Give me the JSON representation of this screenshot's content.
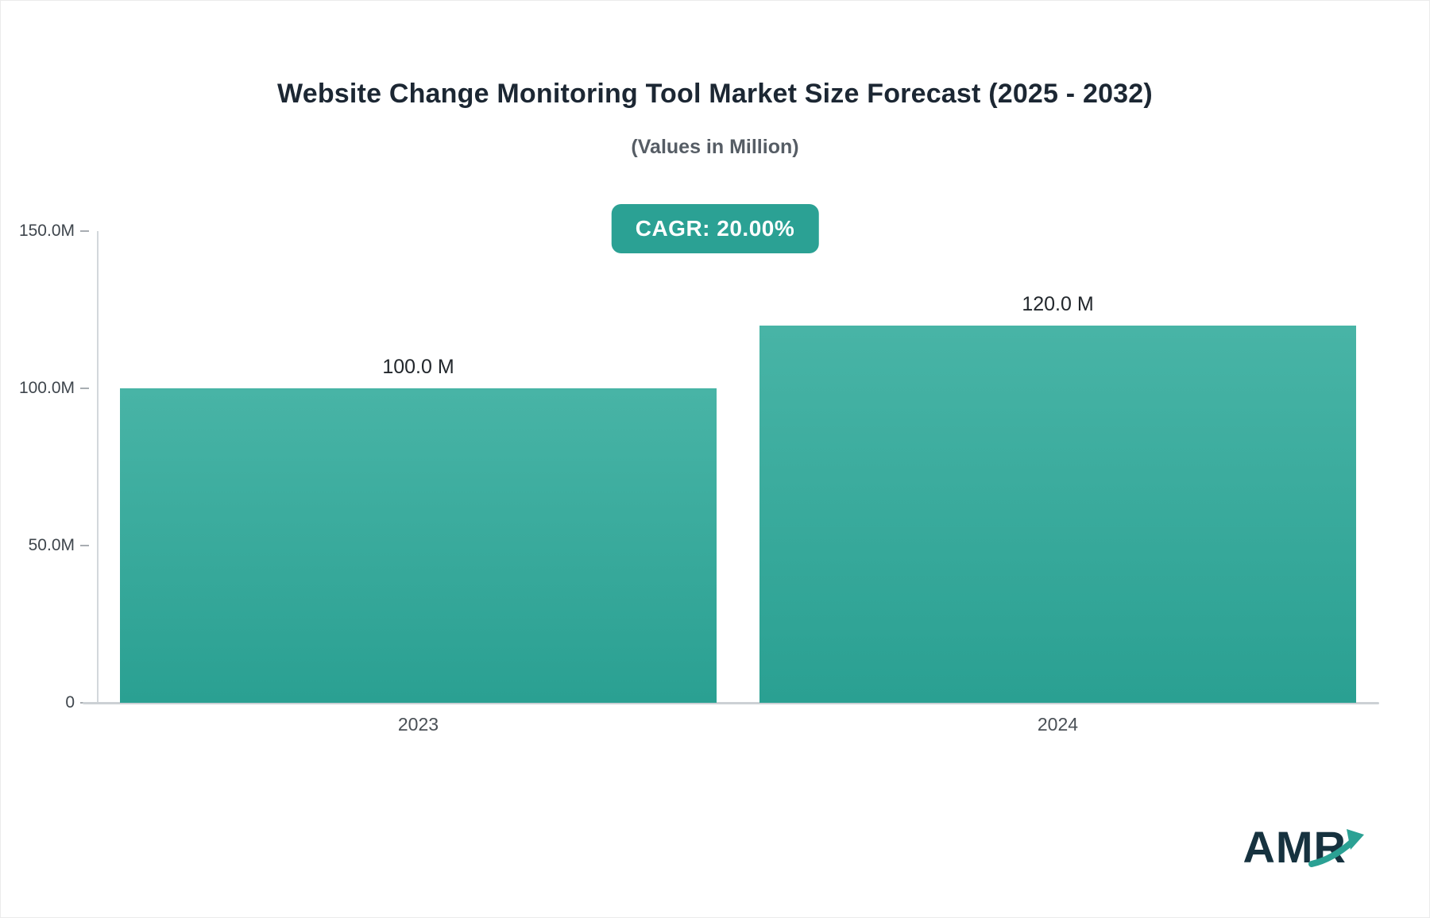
{
  "chart_data": {
    "type": "bar",
    "title": "Website Change Monitoring Tool Market Size Forecast (2025 - 2032)",
    "subtitle": "(Values in Million)",
    "cagr_label": "CAGR: 20.00%",
    "categories": [
      "2023",
      "2024"
    ],
    "values": [
      100.0,
      120.0
    ],
    "value_labels": [
      "100.0 M",
      "120.0 M"
    ],
    "unit": "Million",
    "ylim": [
      0,
      150
    ],
    "yticks": [
      0,
      50,
      100,
      150
    ],
    "ytick_labels": [
      "0",
      "50.0M",
      "100.0M",
      "150.0M"
    ],
    "xlabel": "",
    "ylabel": "",
    "grid": false,
    "legend": "none",
    "bar_color_top": "#48b4a6",
    "bar_color_bottom": "#2aa092"
  },
  "badge": {
    "bg_color": "#2ba194",
    "text_color": "#ffffff"
  },
  "branding": {
    "logo_text": "AMR",
    "logo_color": "#16323f",
    "logo_arrow_color": "#2ba194"
  }
}
